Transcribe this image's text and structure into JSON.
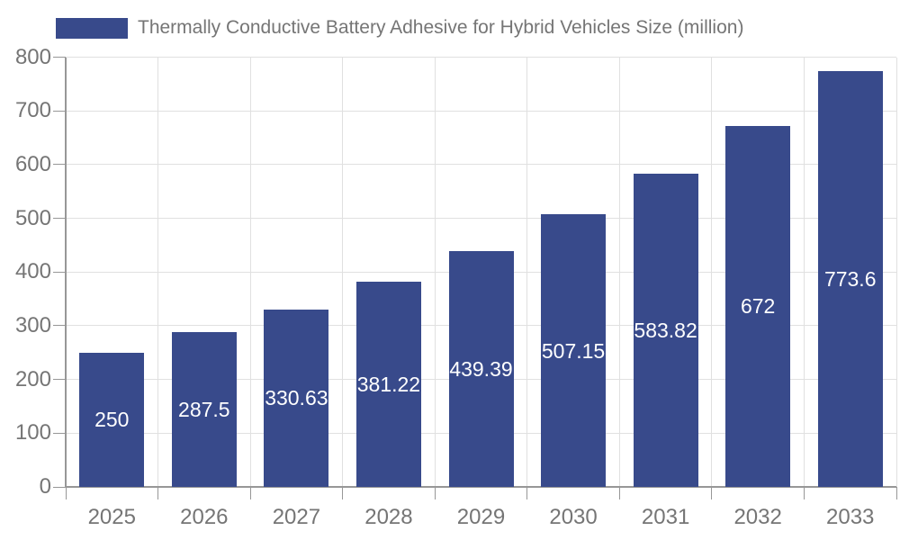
{
  "legend": {
    "label": "Thermally Conductive Battery Adhesive for Hybrid Vehicles Size (million)"
  },
  "chart_data": {
    "type": "bar",
    "title": "Thermally Conductive Battery Adhesive for Hybrid Vehicles Size (million)",
    "categories": [
      "2025",
      "2026",
      "2027",
      "2028",
      "2029",
      "2030",
      "2031",
      "2032",
      "2033"
    ],
    "values": [
      250,
      287.5,
      330.63,
      381.22,
      439.39,
      507.15,
      583.82,
      672,
      773.6
    ],
    "value_labels": [
      "250",
      "287.5",
      "330.63",
      "381.22",
      "439.39",
      "507.15",
      "583.82",
      "672",
      "773.6"
    ],
    "xlabel": "",
    "ylabel": "",
    "ylim": [
      0,
      800
    ],
    "y_ticks": [
      0,
      100,
      200,
      300,
      400,
      500,
      600,
      700,
      800
    ],
    "grid": "horizontal-and-vertical-boundaries",
    "legend_position": "top-left",
    "value_label_position": "inside-center",
    "series": [
      {
        "name": "Thermally Conductive Battery Adhesive for Hybrid Vehicles Size (million)",
        "values": [
          250,
          287.5,
          330.63,
          381.22,
          439.39,
          507.15,
          583.82,
          672,
          773.6
        ]
      }
    ]
  },
  "colors": {
    "bar": "#384a8b",
    "grid_line": "#e0e0e0",
    "axis_line": "#979797",
    "tick_text": "#757575",
    "legend_text": "#757575",
    "value_text": "#ffffff",
    "background": "#ffffff"
  }
}
